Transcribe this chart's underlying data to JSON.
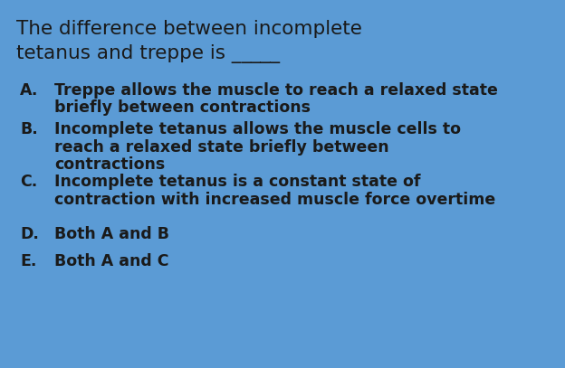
{
  "background_color": "#5b9bd5",
  "text_color": "#1a1a1a",
  "title_line1": "The difference between incomplete",
  "title_line2": "tetanus and treppe is _____",
  "options": [
    {
      "label": "A.",
      "lines": [
        "Treppe allows the muscle to reach a relaxed state",
        "briefly between contractions"
      ]
    },
    {
      "label": "B.",
      "lines": [
        "Incomplete tetanus allows the muscle cells to",
        "reach a relaxed state briefly between",
        "contractions"
      ]
    },
    {
      "label": "C.",
      "lines": [
        "Incomplete tetanus is a constant state of",
        "contraction with increased muscle force overtime"
      ]
    },
    {
      "label": "D.",
      "lines": [
        "Both A and B"
      ]
    },
    {
      "label": "E.",
      "lines": [
        "Both A and C"
      ]
    }
  ],
  "title_fontsize": 15.5,
  "option_fontsize": 12.5,
  "figsize": [
    6.24,
    4.07
  ],
  "dpi": 100
}
